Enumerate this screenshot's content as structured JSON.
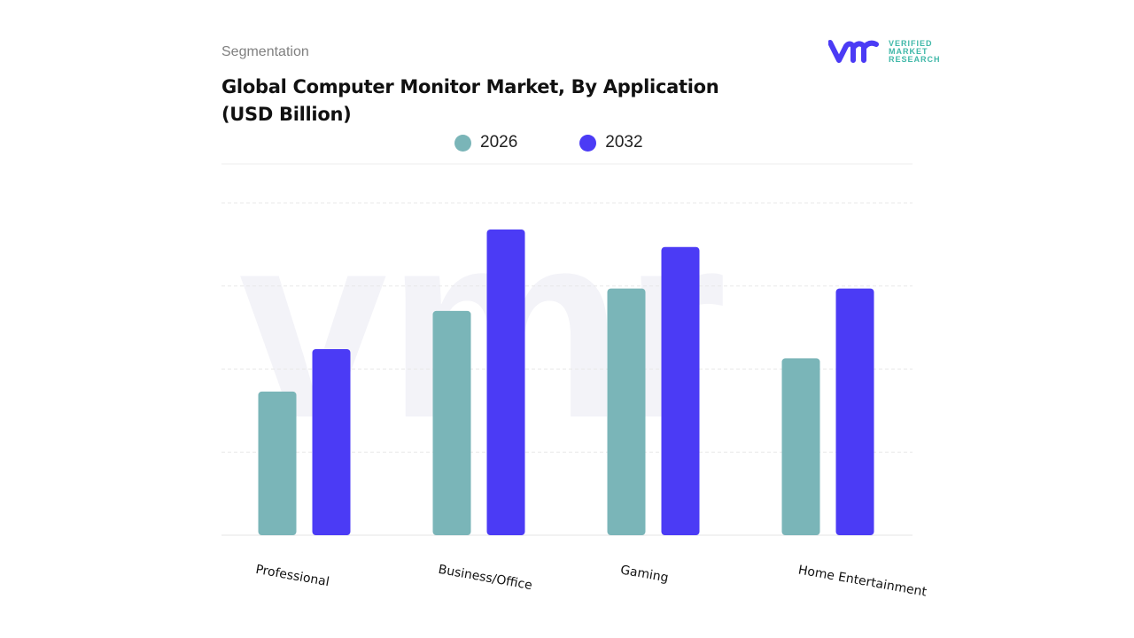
{
  "header": {
    "segment_label": "Segmentation",
    "title": "Global Computer Monitor Market, By Application (USD Billion)"
  },
  "logo": {
    "line1": "VERIFIED",
    "line2": "MARKET",
    "line3": "RESEARCH",
    "mark": "vmr"
  },
  "chart_data": {
    "type": "bar",
    "title": "Global Computer Monitor Market, By Application (USD Billion)",
    "categories": [
      "Professional",
      "Business/Office",
      "Gaming",
      "Home Entertainment"
    ],
    "series": [
      {
        "name": "2026",
        "color": "#7ab5b8",
        "values": [
          1.73,
          2.7,
          2.97,
          2.13
        ]
      },
      {
        "name": "2032",
        "color": "#4b3bf5",
        "values": [
          2.24,
          3.68,
          3.47,
          2.97
        ]
      }
    ],
    "ylim": [
      0,
      4
    ],
    "grid": true,
    "legend": "top",
    "xlabel": "",
    "ylabel": ""
  }
}
